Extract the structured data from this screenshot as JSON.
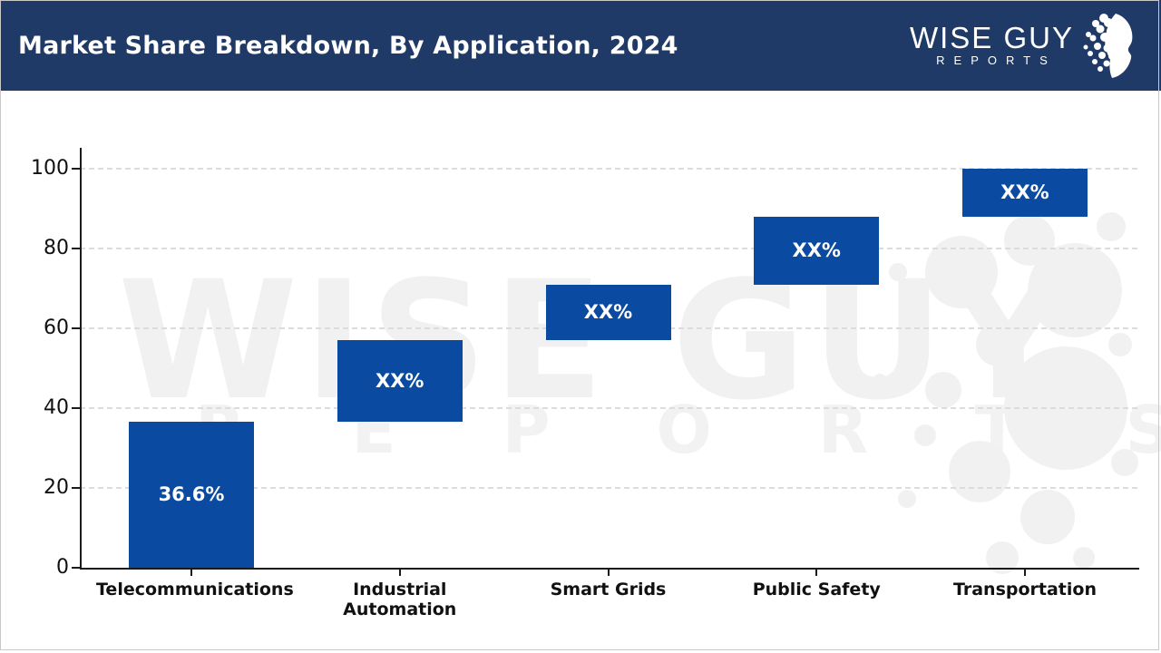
{
  "header": {
    "title": "Market Share Breakdown, By Application, 2024",
    "logo": {
      "line1": "WISE GUY",
      "line2": "REPORTS"
    }
  },
  "watermark": {
    "line1": "WISE GUY",
    "line2": "REPORTS"
  },
  "chart_data": {
    "type": "bar",
    "variant": "waterfall",
    "title": "Market Share Breakdown, By Application, 2024",
    "categories": [
      "Telecommunications",
      "Industrial Automation",
      "Smart Grids",
      "Public Safety",
      "Transportation"
    ],
    "segments": [
      {
        "category": "Telecommunications",
        "start": 0,
        "end": 36.6,
        "label": "36.6%"
      },
      {
        "category": "Industrial Automation",
        "start": 36.6,
        "end": 57,
        "label": "XX%"
      },
      {
        "category": "Smart Grids",
        "start": 57,
        "end": 71,
        "label": "XX%"
      },
      {
        "category": "Public Safety",
        "start": 71,
        "end": 88,
        "label": "XX%"
      },
      {
        "category": "Transportation",
        "start": 88,
        "end": 100,
        "label": "XX%"
      }
    ],
    "ylim": [
      0,
      100
    ],
    "yticks": [
      0,
      20,
      40,
      60,
      80,
      100
    ],
    "grid": "horizontal-dashed",
    "legend": "none",
    "colors": {
      "bar": "#0a4ba1",
      "bar_label": "#ffffff",
      "header_background": "#1f3a66",
      "axis": "#1a1a1a",
      "gridline": "#dcdcdc",
      "watermark": "#f1f1f1"
    }
  }
}
